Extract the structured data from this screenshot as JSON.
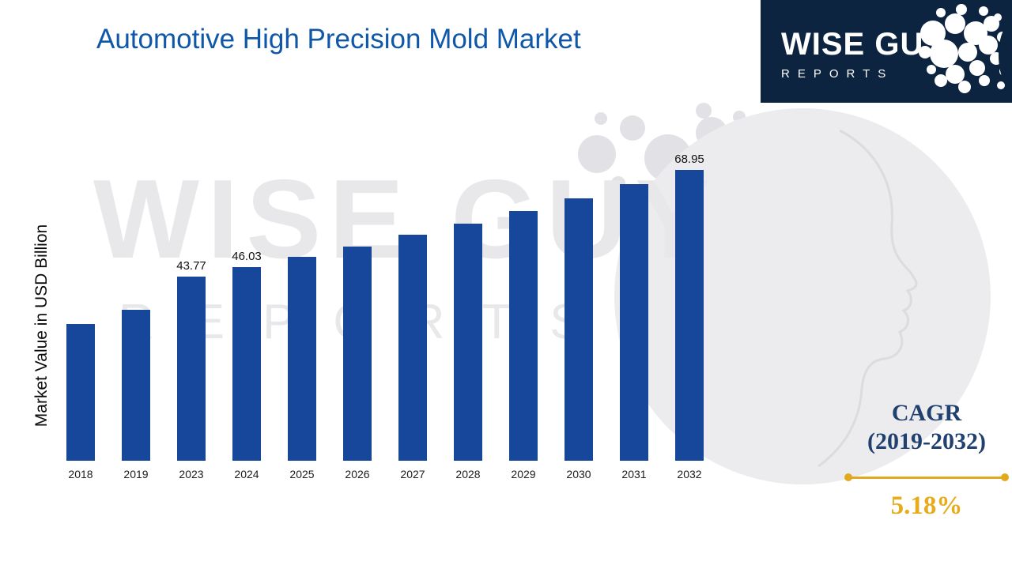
{
  "title": "Automotive High Precision Mold Market",
  "logo": {
    "brand": "WISE GUY",
    "subtitle": "REPORTS"
  },
  "watermark": {
    "line1": "WISE GUY",
    "line2": "REPORTS"
  },
  "chart_data": {
    "type": "bar",
    "title": "Automotive High Precision Mold Market",
    "xlabel": "",
    "ylabel": "Market Value in USD Billion",
    "categories": [
      "2018",
      "2019",
      "2023",
      "2024",
      "2025",
      "2026",
      "2027",
      "2028",
      "2029",
      "2030",
      "2031",
      "2032"
    ],
    "values": [
      32.5,
      35.8,
      43.77,
      46.03,
      48.4,
      50.9,
      53.6,
      56.3,
      59.2,
      62.3,
      65.6,
      68.95
    ],
    "bar_labels": [
      "",
      "",
      "43.77",
      "46.03",
      "",
      "",
      "",
      "",
      "",
      "",
      "",
      "68.95"
    ],
    "ylim": [
      0,
      72
    ],
    "grid": false,
    "legend": null,
    "bar_color": "#16479b"
  },
  "cagr": {
    "label": "CAGR",
    "range": "(2019-2032)",
    "value": "5.18%",
    "accent_color": "#e2a91c",
    "text_color": "#20406f"
  }
}
